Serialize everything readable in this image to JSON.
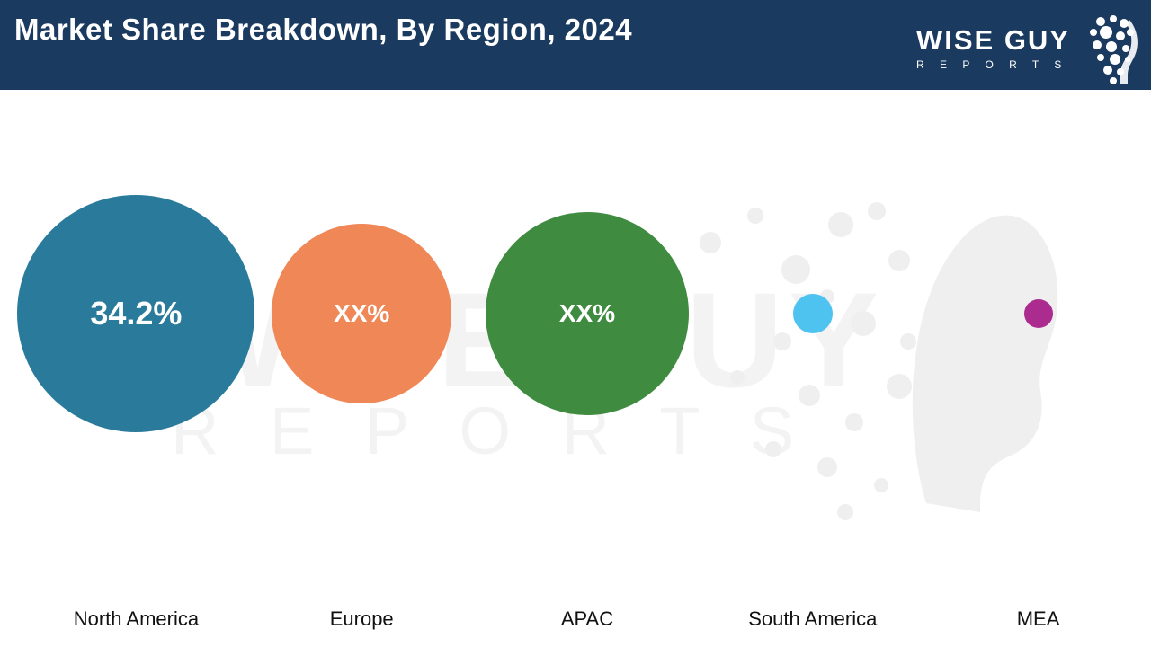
{
  "header": {
    "title": "Market Share Breakdown, By Region, 2024",
    "logo": {
      "line1": "WISE GUY",
      "line2": "R E P O R T S"
    }
  },
  "watermark": {
    "line1": "WISE GUY",
    "line2": "R E P O R T S"
  },
  "chart_data": {
    "type": "bubble",
    "title": "Market Share Breakdown, By Region, 2024",
    "categories": [
      "North America",
      "Europe",
      "APAC",
      "South America",
      "MEA"
    ],
    "series": [
      {
        "name": "North America",
        "value_label": "34.2%",
        "value": 34.2,
        "radius_px": 132,
        "color": "#2a7b9b"
      },
      {
        "name": "Europe",
        "value_label": "XX%",
        "value": null,
        "radius_px": 100,
        "color": "#ef8757"
      },
      {
        "name": "APAC",
        "value_label": "XX%",
        "value": null,
        "radius_px": 113,
        "color": "#3f8b3f"
      },
      {
        "name": "South America",
        "value_label": "",
        "value": null,
        "radius_px": 22,
        "color": "#4fc3f0"
      },
      {
        "name": "MEA",
        "value_label": "",
        "value": null,
        "radius_px": 16,
        "color": "#ab2b8f"
      }
    ],
    "legend_position": "bottom-labels",
    "grid": false
  }
}
